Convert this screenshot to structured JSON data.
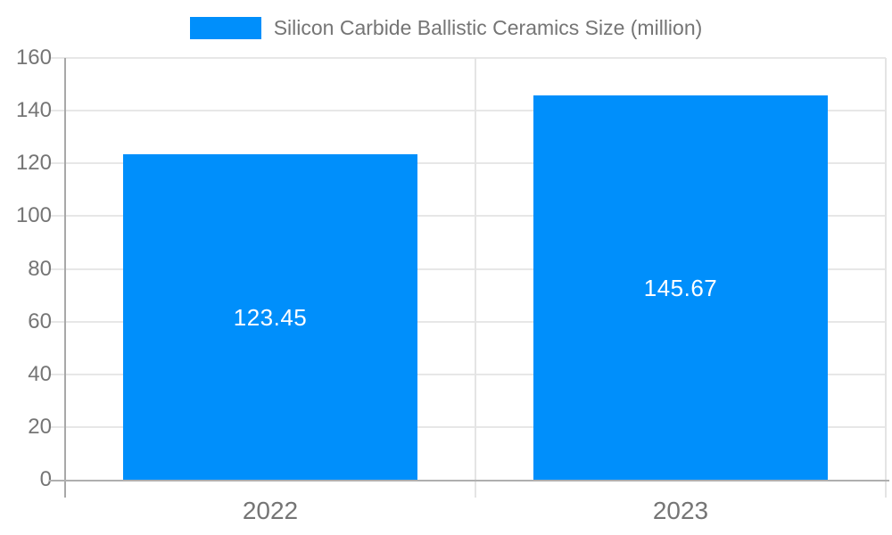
{
  "legend": {
    "swatch_color": "#008FFB"
  },
  "chart_data": {
    "type": "bar",
    "title": "Silicon Carbide Ballistic Ceramics Size (million)",
    "categories": [
      "2022",
      "2023"
    ],
    "series": [
      {
        "name": "Silicon Carbide Ballistic Ceramics Size (million)",
        "values": [
          123.45,
          145.67
        ]
      }
    ],
    "value_labels": [
      "123.45",
      "145.67"
    ],
    "xlabel": "",
    "ylabel": "",
    "ylim": [
      0,
      160
    ],
    "yticks": [
      0,
      20,
      40,
      60,
      80,
      100,
      120,
      140,
      160
    ],
    "grid": true,
    "legend_position": "top",
    "colors": {
      "bar": "#008FFB",
      "value_label": "#FFFFFF",
      "tick_text": "#757575",
      "grid_line": "#E7E7E7",
      "band_line": "#E4E4E4",
      "y_axis_line": "#A8A8A8",
      "x_axis_line": "#AFAFAF",
      "background": "#FFFFFF"
    }
  }
}
